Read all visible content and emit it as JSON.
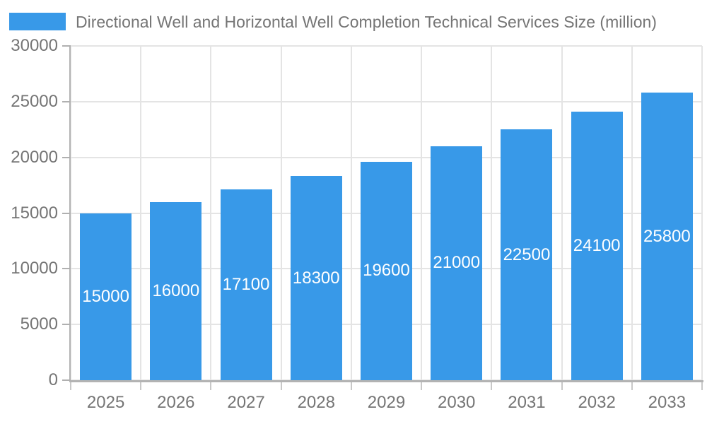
{
  "chart_data": {
    "type": "bar",
    "title": "Directional Well and Horizontal Well Completion Technical Services Size (million)",
    "categories": [
      "2025",
      "2026",
      "2027",
      "2028",
      "2029",
      "2030",
      "2031",
      "2032",
      "2033"
    ],
    "values": [
      15000,
      16000,
      17100,
      18300,
      19600,
      21000,
      22500,
      24100,
      25800
    ],
    "value_labels": [
      "15000",
      "16000",
      "17100",
      "18300",
      "19600",
      "21000",
      "22500",
      "24100",
      "25800"
    ],
    "xlabel": "",
    "ylabel": "",
    "ylim": [
      0,
      30000
    ],
    "y_ticks": [
      0,
      5000,
      10000,
      15000,
      20000,
      25000,
      30000
    ],
    "y_tick_labels": [
      "0",
      "5000",
      "10000",
      "15000",
      "20000",
      "25000",
      "30000"
    ],
    "grid": true,
    "legend_position": "top-left",
    "colors": {
      "bar": "#3899e8",
      "value_label": "#ffffff",
      "axis_text": "#757575",
      "title_text": "#757575",
      "grid_line": "#e4e4e4",
      "axis_line": "#b3b3b3",
      "background": "#ffffff"
    }
  }
}
